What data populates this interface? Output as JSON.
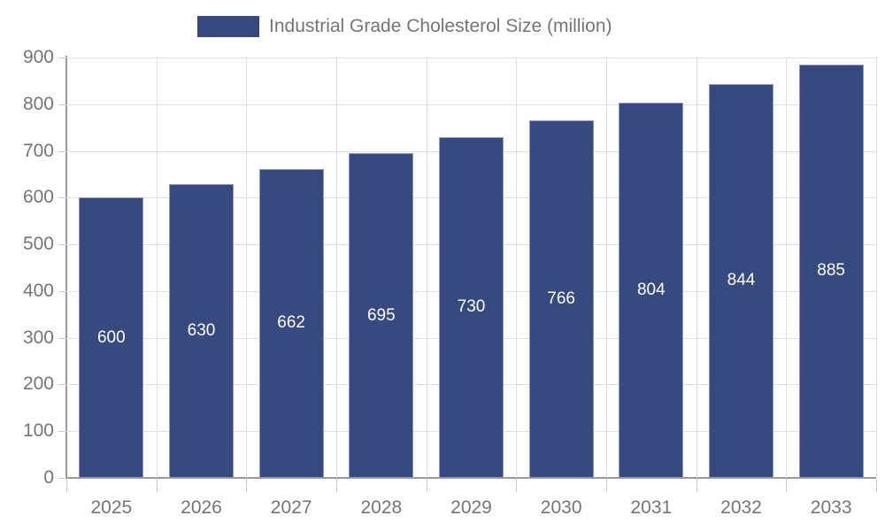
{
  "legend": {
    "label": "Industrial Grade Cholesterol Size (million)"
  },
  "chart_data": {
    "type": "bar",
    "title": "Industrial Grade Cholesterol Size (million)",
    "categories": [
      "2025",
      "2026",
      "2027",
      "2028",
      "2029",
      "2030",
      "2031",
      "2032",
      "2033"
    ],
    "values": [
      600,
      630,
      662,
      695,
      730,
      766,
      804,
      844,
      885
    ],
    "value_labels": [
      "600",
      "630",
      "662",
      "695",
      "730",
      "766",
      "804",
      "844",
      "885"
    ],
    "xlabel": "",
    "ylabel": "",
    "ylim": [
      0,
      900
    ],
    "y_ticks": [
      0,
      100,
      200,
      300,
      400,
      500,
      600,
      700,
      800,
      900
    ],
    "grid": "on",
    "legend_position": "top",
    "colors": {
      "bar_fill": "#374A80",
      "bar_border": "#8D99C8",
      "gridline": "#e0e0e0",
      "axis_line": "#999999",
      "tick_mark": "#cccccc",
      "axis_text": "#757575",
      "value_text": "#ffffff"
    }
  }
}
